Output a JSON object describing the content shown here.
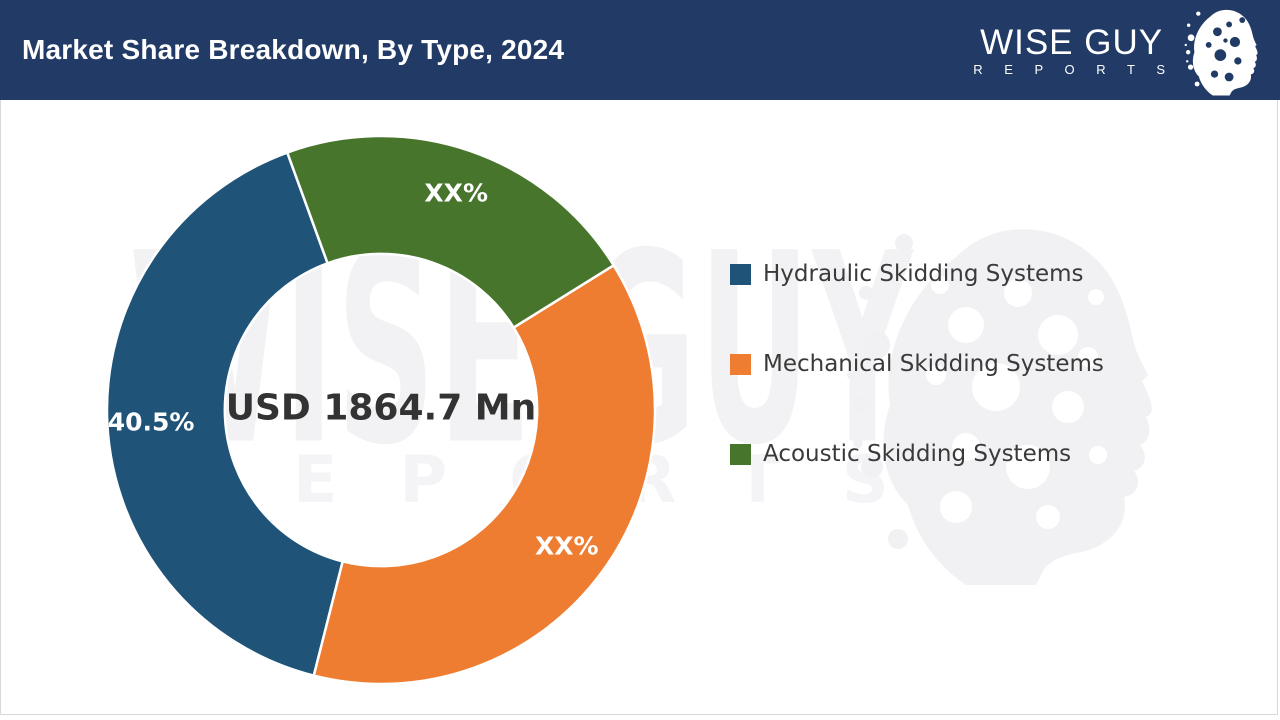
{
  "header": {
    "title": "Market Share Breakdown, By Type, 2024",
    "logo": {
      "brand": "WISE GUY",
      "sub": "R E P O R T S",
      "face_icon": "dotted-head-profile"
    }
  },
  "watermark": {
    "line1": "WISE GUY",
    "line2": "REPORTS",
    "face_icon": "dotted-head-profile",
    "color": "#f2f2f4"
  },
  "chart_data": {
    "type": "pie",
    "subtype": "donut",
    "title": "Market Share Breakdown, By Type, 2024",
    "center_label": "USD 1864.7 Mn",
    "start_angle_deg": 110,
    "direction": "counterclockwise",
    "inner_radius_ratio": 0.57,
    "label_radius_ratio": 0.84,
    "legend_position": "right",
    "segments": [
      {
        "name": "Hydraulic Skidding Systems",
        "display_label": "40.5%",
        "value_pct": 40.5,
        "value_estimated": false,
        "color": "#1f5378"
      },
      {
        "name": "Mechanical Skidding Systems",
        "display_label": "XX%",
        "value_pct": 37.8,
        "value_estimated": true,
        "color": "#ee7d31"
      },
      {
        "name": "Acoustic Skidding Systems",
        "display_label": "XX%",
        "value_pct": 21.7,
        "value_estimated": true,
        "color": "#48752c"
      }
    ],
    "colors": {
      "header_bar": "#213a66",
      "separator": "#ffffff",
      "legend_text": "#3a3a3a",
      "center_text": "#333333"
    }
  }
}
